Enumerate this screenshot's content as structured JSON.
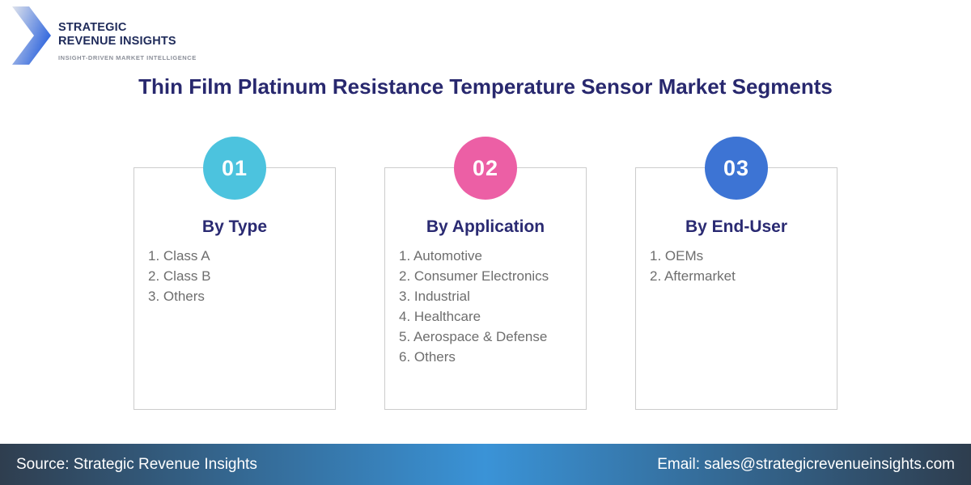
{
  "logo": {
    "name_line1": "STRATEGIC",
    "name_line2": "REVENUE INSIGHTS",
    "tagline": "INSIGHT-DRIVEN MARKET INTELLIGENCE"
  },
  "title": "Thin Film Platinum Resistance Temperature Sensor Market Segments",
  "cards": [
    {
      "number": "01",
      "heading": "By Type",
      "items": [
        "1. Class A",
        "2. Class B",
        "3. Others"
      ],
      "circle_color": "#4cc3de"
    },
    {
      "number": "02",
      "heading": "By Application",
      "items": [
        "1. Automotive",
        "2. Consumer Electronics",
        "3. Industrial",
        "4. Healthcare",
        "5. Aerospace & Defense",
        "6. Others"
      ],
      "circle_color": "#ec5fa5"
    },
    {
      "number": "03",
      "heading": "By End-User",
      "items": [
        "1. OEMs",
        "2. Aftermarket"
      ],
      "circle_color": "#3d74d4"
    }
  ],
  "footer": {
    "source": "Source: Strategic Revenue Insights",
    "email": "Email: sales@strategicrevenueinsights.com"
  },
  "colors": {
    "title_navy": "#28286e",
    "heading_navy": "#2a2a72",
    "logo_navy": "#1f2b5a",
    "list_gray": "#6e6e6e",
    "card_border": "#cccccc",
    "circle_cyan": "#4cc3de",
    "circle_pink": "#ec5fa5",
    "circle_blue": "#3d74d4",
    "footer_edge_dark": "#2f3e4f",
    "footer_center_blue": "#3a93d7",
    "logo_gradient_start": "#dfe3ec",
    "logo_gradient_end": "#2c63dd"
  }
}
